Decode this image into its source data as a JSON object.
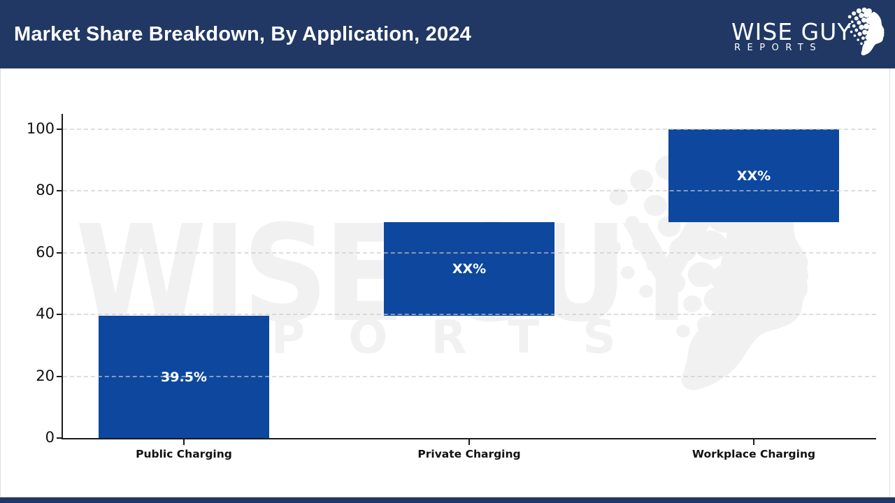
{
  "header": {
    "title": "Market Share Breakdown, By Application, 2024",
    "logo": {
      "name": "WISE GUY",
      "tagline": "REPORTS"
    }
  },
  "watermark": {
    "name": "WISE GUY",
    "tagline": "REPORTS"
  },
  "chart_data": {
    "type": "bar",
    "variant": "waterfall",
    "title": "Market Share Breakdown, By Application, 2024",
    "categories": [
      "Public Charging",
      "Private Charging",
      "Workplace Charging"
    ],
    "series": [
      {
        "name": "Market share (%)",
        "segments": [
          {
            "category": "Public Charging",
            "start": 0,
            "end": 39.5,
            "label": "39.5%"
          },
          {
            "category": "Private Charging",
            "start": 39.5,
            "end": 69.8,
            "label": "XX%"
          },
          {
            "category": "Workplace Charging",
            "start": 69.8,
            "end": 100,
            "label": "XX%"
          }
        ]
      }
    ],
    "bar_labels": [
      "39.5%",
      "XX%",
      "XX%"
    ],
    "ylim": [
      0,
      100
    ],
    "yticks": [
      0,
      20,
      40,
      60,
      80,
      100
    ],
    "grid": "horizontal-dashed",
    "legend": "none",
    "bar_color": "#0d479e"
  },
  "colors": {
    "header_bg": "#203863",
    "footer_bg": "#203863",
    "bar": "#0d479e",
    "gridline": "#cbcbcb",
    "axis": "#1a1a1a",
    "watermark": "#f1f1f1"
  }
}
